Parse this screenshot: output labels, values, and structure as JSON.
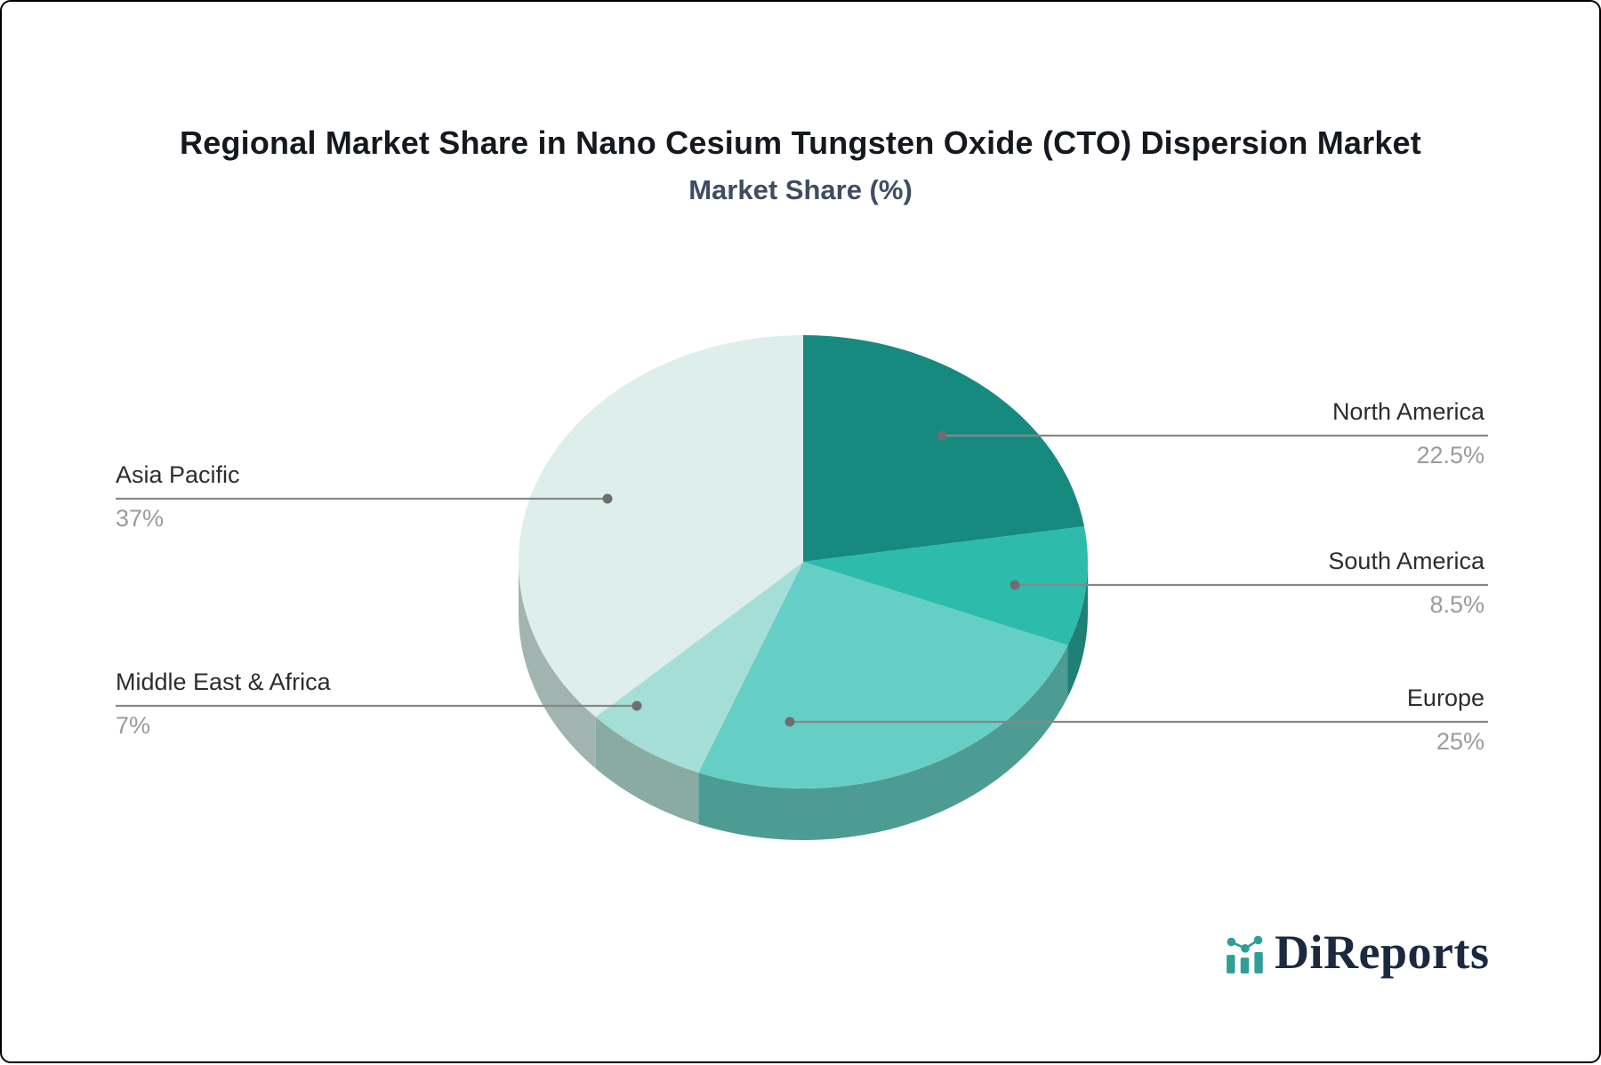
{
  "page": {
    "background": "#ffffff",
    "border_color": "#000000"
  },
  "header": {
    "title": "Regional Market Share in Nano Cesium Tungsten Oxide (CTO) Dispersion Market",
    "subtitle": "Market Share (%)",
    "title_color": "#15191f",
    "subtitle_color": "#3f4d62"
  },
  "chart_data": {
    "type": "pie",
    "style": "3d-pie",
    "title": "Regional Market Share in Nano Cesium Tungsten Oxide (CTO) Dispersion Market",
    "subtitle": "Market Share (%)",
    "unit": "%",
    "start_angle": "12-oclock",
    "direction": "clockwise",
    "legend_position": "callout-labels",
    "slices": [
      {
        "label": "North America",
        "value": 22.5,
        "display": "22.5%",
        "color": "#178a80",
        "side_color": "#10665e"
      },
      {
        "label": "South America",
        "value": 8.5,
        "display": "8.5%",
        "color": "#2dbcac",
        "side_color": "#1e8077"
      },
      {
        "label": "Europe",
        "value": 25,
        "display": "25%",
        "color": "#66cfc5",
        "side_color": "#4d9c94"
      },
      {
        "label": "Middle East & Africa",
        "value": 7,
        "display": "7%",
        "color": "#a5ded6",
        "side_color": "#8aaaa4"
      },
      {
        "label": "Asia Pacific",
        "value": 37,
        "display": "37%",
        "color": "#deeeea",
        "side_color": "#a2b4b0"
      }
    ],
    "label_text_color": "#2d2d2d",
    "value_text_color": "#999b9d",
    "leader_line_color": "#878787",
    "leader_dot_color": "#6e6e6e"
  },
  "logo": {
    "text": "DiReports",
    "text_color": "#1b2940",
    "icon_color": "#2f9e96",
    "icon_name": "bar-line-chart-icon"
  }
}
